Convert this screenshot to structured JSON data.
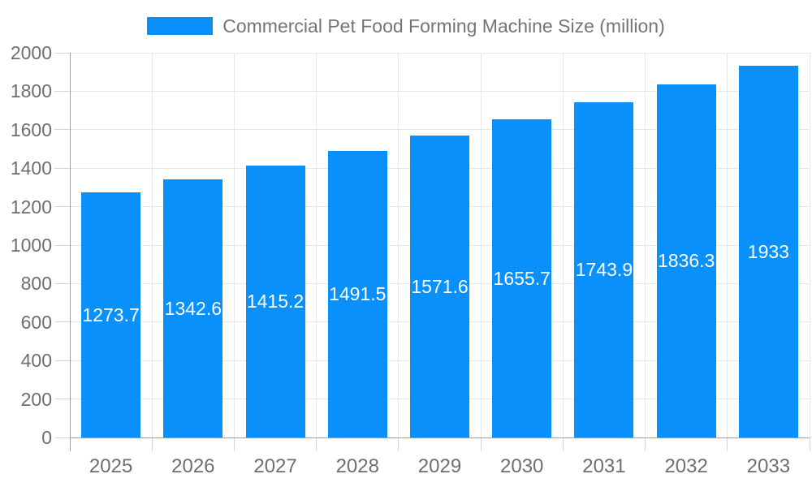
{
  "chart_data": {
    "type": "bar",
    "title": "Commercial Pet Food Forming Machine Size (million)",
    "categories": [
      "2025",
      "2026",
      "2027",
      "2028",
      "2029",
      "2030",
      "2031",
      "2032",
      "2033"
    ],
    "values": [
      1273.7,
      1342.6,
      1415.2,
      1491.5,
      1571.6,
      1655.7,
      1743.9,
      1836.3,
      1933
    ],
    "value_labels": [
      "1273.7",
      "1342.6",
      "1415.2",
      "1491.5",
      "1571.6",
      "1655.7",
      "1743.9",
      "1836.3",
      "1933"
    ],
    "xlabel": "",
    "ylabel": "",
    "ylim": [
      0,
      2000
    ],
    "ytick_step": 200,
    "yticks": [
      "0",
      "200",
      "400",
      "600",
      "800",
      "1000",
      "1200",
      "1400",
      "1600",
      "1800",
      "2000"
    ],
    "grid": true,
    "legend_position": "top-center",
    "colors": {
      "bar": "#0990FA",
      "bar_label": "#FFFFFF",
      "title": "#757575",
      "axis_label": "#6E6E6E",
      "axis_line": "#A0A0A0",
      "tick": "#D4D4D4",
      "gridline": "#E7E7E7",
      "background": "#FFFFFF"
    }
  }
}
